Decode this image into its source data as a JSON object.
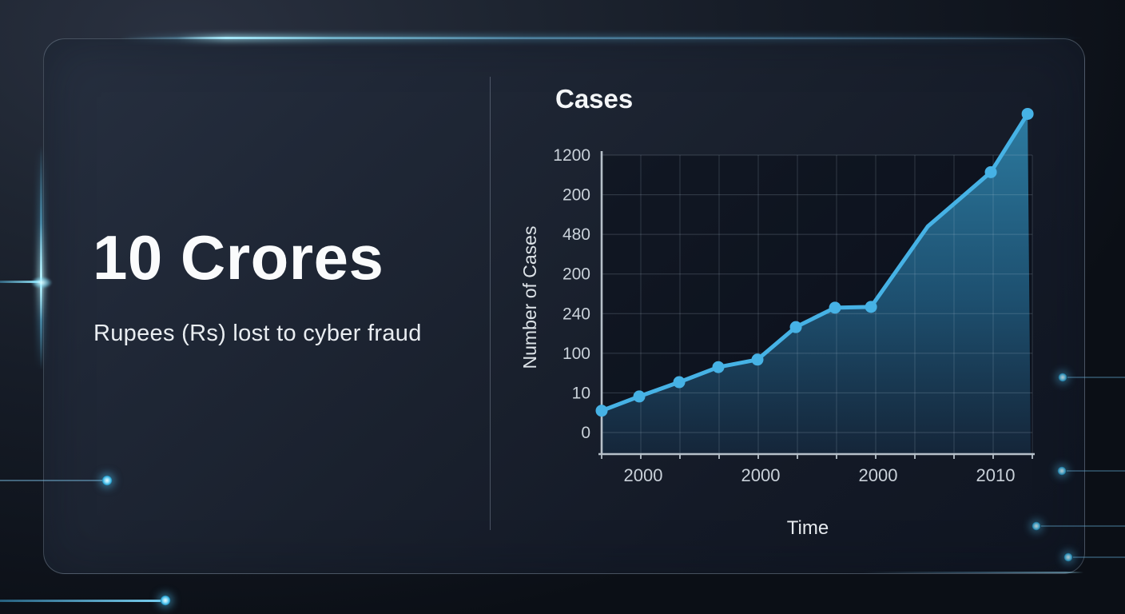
{
  "page": {
    "accent_color": "#49b5e7",
    "background_color": "#141a24"
  },
  "slide": {
    "headline": "10 Crores",
    "subtitle": "Rupees (Rs) lost to cyber fraud"
  },
  "chart_data": {
    "type": "area",
    "title": "Cases",
    "xlabel": "Time",
    "ylabel": "Number of Cases",
    "x_tick_labels": [
      "2000",
      "2000",
      "2000",
      "2010"
    ],
    "x_tick_gridline_indices": [
      1,
      4,
      7,
      10
    ],
    "y_tick_labels_bottom_to_top": [
      "0",
      "10",
      "100",
      "240",
      "200",
      "480",
      "200",
      "1200"
    ],
    "num_vertical_gridlines": 12,
    "grid": true,
    "legend_position": "none",
    "line_color": "#46b2e5",
    "marker_color": "#46b2e5",
    "area_top_color": "#2e81a8",
    "area_mid_color": "#1f5678",
    "area_bottom_color": "#16293e",
    "series": [
      {
        "name": "Cases",
        "units": "x = vertical-gridline index, y = gridline steps above the 0 line",
        "points": [
          {
            "x": 0.0,
            "y": 0.55,
            "marker": true
          },
          {
            "x": 0.96,
            "y": 0.91,
            "marker": true
          },
          {
            "x": 1.98,
            "y": 1.27,
            "marker": true
          },
          {
            "x": 2.98,
            "y": 1.65,
            "marker": true
          },
          {
            "x": 3.98,
            "y": 1.84,
            "marker": true
          },
          {
            "x": 4.96,
            "y": 2.66,
            "marker": true
          },
          {
            "x": 5.96,
            "y": 3.15,
            "marker": true
          },
          {
            "x": 6.88,
            "y": 3.17,
            "marker": true
          },
          {
            "x": 8.33,
            "y": 5.2,
            "marker": false
          },
          {
            "x": 9.94,
            "y": 6.57,
            "marker": true
          },
          {
            "x": 10.88,
            "y": 8.04,
            "marker": true
          }
        ]
      }
    ]
  }
}
